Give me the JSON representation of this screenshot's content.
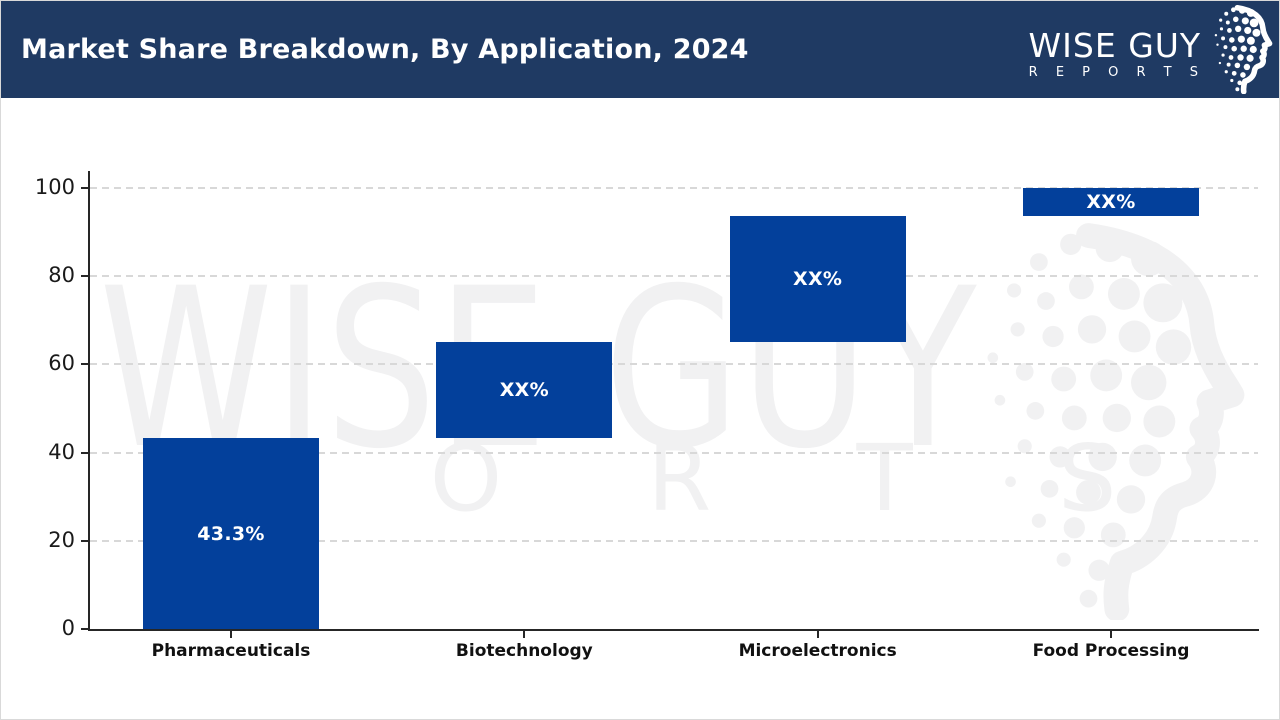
{
  "header": {
    "title": "Market Share Breakdown, By Application, 2024",
    "logo": {
      "line1": "WISE GUY",
      "line2": "R E P O R T S"
    }
  },
  "watermark": {
    "line1": "WISE GUY",
    "line2": "P O R T S"
  },
  "colors": {
    "header_bg": "#1f3a63",
    "bar": "#03409b",
    "grid": "#d8d8d8",
    "axis": "#262626",
    "bar_label": "#ffffff",
    "watermark": "#f1f1f2"
  },
  "chart_data": {
    "type": "bar",
    "variant": "waterfall",
    "title": "Market Share Breakdown, By Application, 2024",
    "xlabel": "",
    "ylabel": "",
    "ylim": [
      0,
      100
    ],
    "yticks": [
      0,
      20,
      40,
      60,
      80,
      100
    ],
    "grid": "horizontal-dashed",
    "legend": "none",
    "categories": [
      "Pharmaceuticals",
      "Biotechnology",
      "Microelectronics",
      "Food Processing"
    ],
    "series": [
      {
        "name": "Market share (%)",
        "segments": [
          {
            "category": "Pharmaceuticals",
            "start": 0,
            "end": 43.3,
            "label": "43.3%"
          },
          {
            "category": "Biotechnology",
            "start": 43.3,
            "end": 65,
            "label": "XX%"
          },
          {
            "category": "Microelectronics",
            "start": 65,
            "end": 93.6,
            "label": "XX%"
          },
          {
            "category": "Food Processing",
            "start": 93.6,
            "end": 100,
            "label": "XX%"
          }
        ]
      }
    ]
  }
}
